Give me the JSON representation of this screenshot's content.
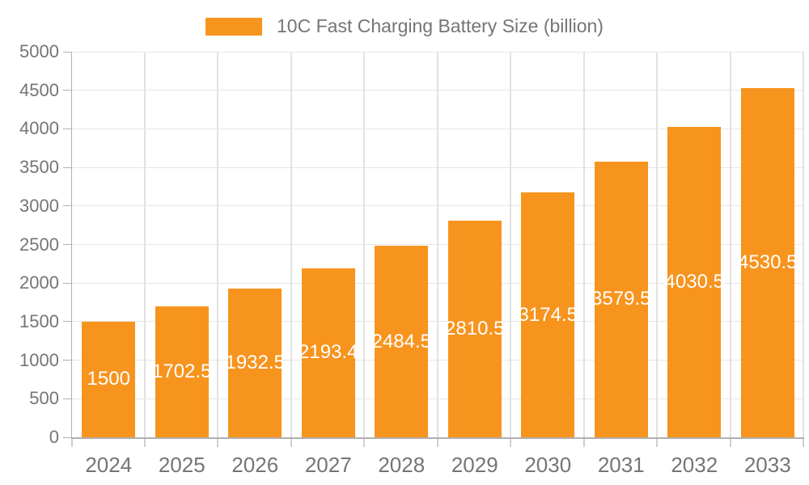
{
  "legend": {
    "label": "10C Fast Charging Battery Size (billion)"
  },
  "chart_data": {
    "type": "bar",
    "title": "10C Fast Charging Battery Size (billion)",
    "categories": [
      "2024",
      "2025",
      "2026",
      "2027",
      "2028",
      "2029",
      "2030",
      "2031",
      "2032",
      "2033"
    ],
    "values": [
      1500,
      1702.5,
      1932.5,
      2193.4,
      2484.5,
      2810.5,
      3174.5,
      3579.5,
      4030.5,
      4530.5
    ],
    "value_labels": [
      "1500",
      "1702.5",
      "1932.5",
      "2193.4",
      "2484.5",
      "2810.5",
      "3174.5",
      "3579.5",
      "4030.5",
      "4530.5"
    ],
    "xlabel": "",
    "ylabel": "",
    "ylim": [
      0,
      5000
    ],
    "y_ticks": [
      0,
      500,
      1000,
      1500,
      2000,
      2500,
      3000,
      3500,
      4000,
      4500,
      5000
    ],
    "grid": true,
    "legend_position": "top-center",
    "value_label_position": "inside-middle",
    "colors": {
      "bar": "#f7941e",
      "grid_horizontal": "#e6e6e6",
      "grid_vertical": "#e2e2e2",
      "axis": "#b0b0b0",
      "boundary_tick": "#cfcfcf",
      "text": "#757575",
      "value_label": "#ffffff",
      "background": "#ffffff"
    }
  }
}
